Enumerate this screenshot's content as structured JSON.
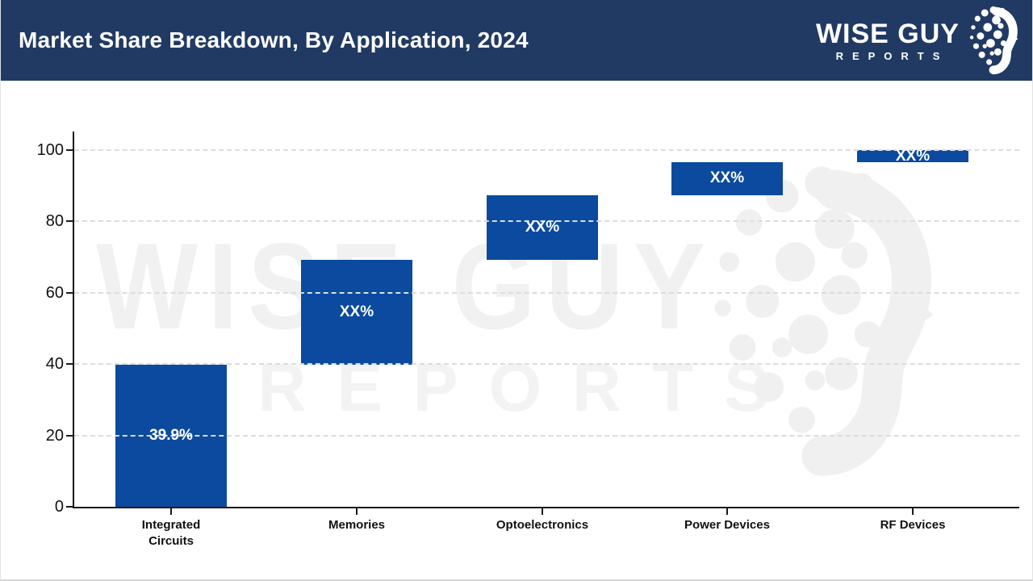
{
  "header": {
    "title": "Market Share Breakdown, By Application, 2024",
    "logo": {
      "name": "WISE GUY",
      "sub": "REPORTS"
    }
  },
  "watermark": {
    "name": "WISE GUY",
    "sub": "REPORTS"
  },
  "colors": {
    "header_bg": "#213a63",
    "bar": "#0b4a9e",
    "bar_label": "#ffffff",
    "gridline": "#dcdcdc",
    "axis": "#1a1a1a",
    "watermark": "#f1f1f1"
  },
  "chart_data": {
    "type": "bar",
    "subtype": "waterfall",
    "title": "Market Share Breakdown, By Application, 2024",
    "xlabel": "",
    "ylabel": "",
    "categories": [
      "Integrated Circuits",
      "Memories",
      "Optoelectronics",
      "Power Devices",
      "RF Devices"
    ],
    "segments": [
      {
        "category": "Integrated Circuits",
        "start": 0,
        "end": 39.9,
        "label": "39.9%"
      },
      {
        "category": "Memories",
        "start": 39.9,
        "end": 69.2,
        "label": "XX%"
      },
      {
        "category": "Optoelectronics",
        "start": 69.2,
        "end": 87.4,
        "label": "XX%"
      },
      {
        "category": "Power Devices",
        "start": 87.4,
        "end": 96.6,
        "label": "XX%"
      },
      {
        "category": "RF Devices",
        "start": 96.6,
        "end": 100,
        "label": "XX%"
      }
    ],
    "yticks": [
      0,
      20,
      40,
      60,
      80,
      100
    ],
    "ylim": [
      0,
      100
    ],
    "grid": "dashed-horizontal",
    "legend": "none"
  }
}
